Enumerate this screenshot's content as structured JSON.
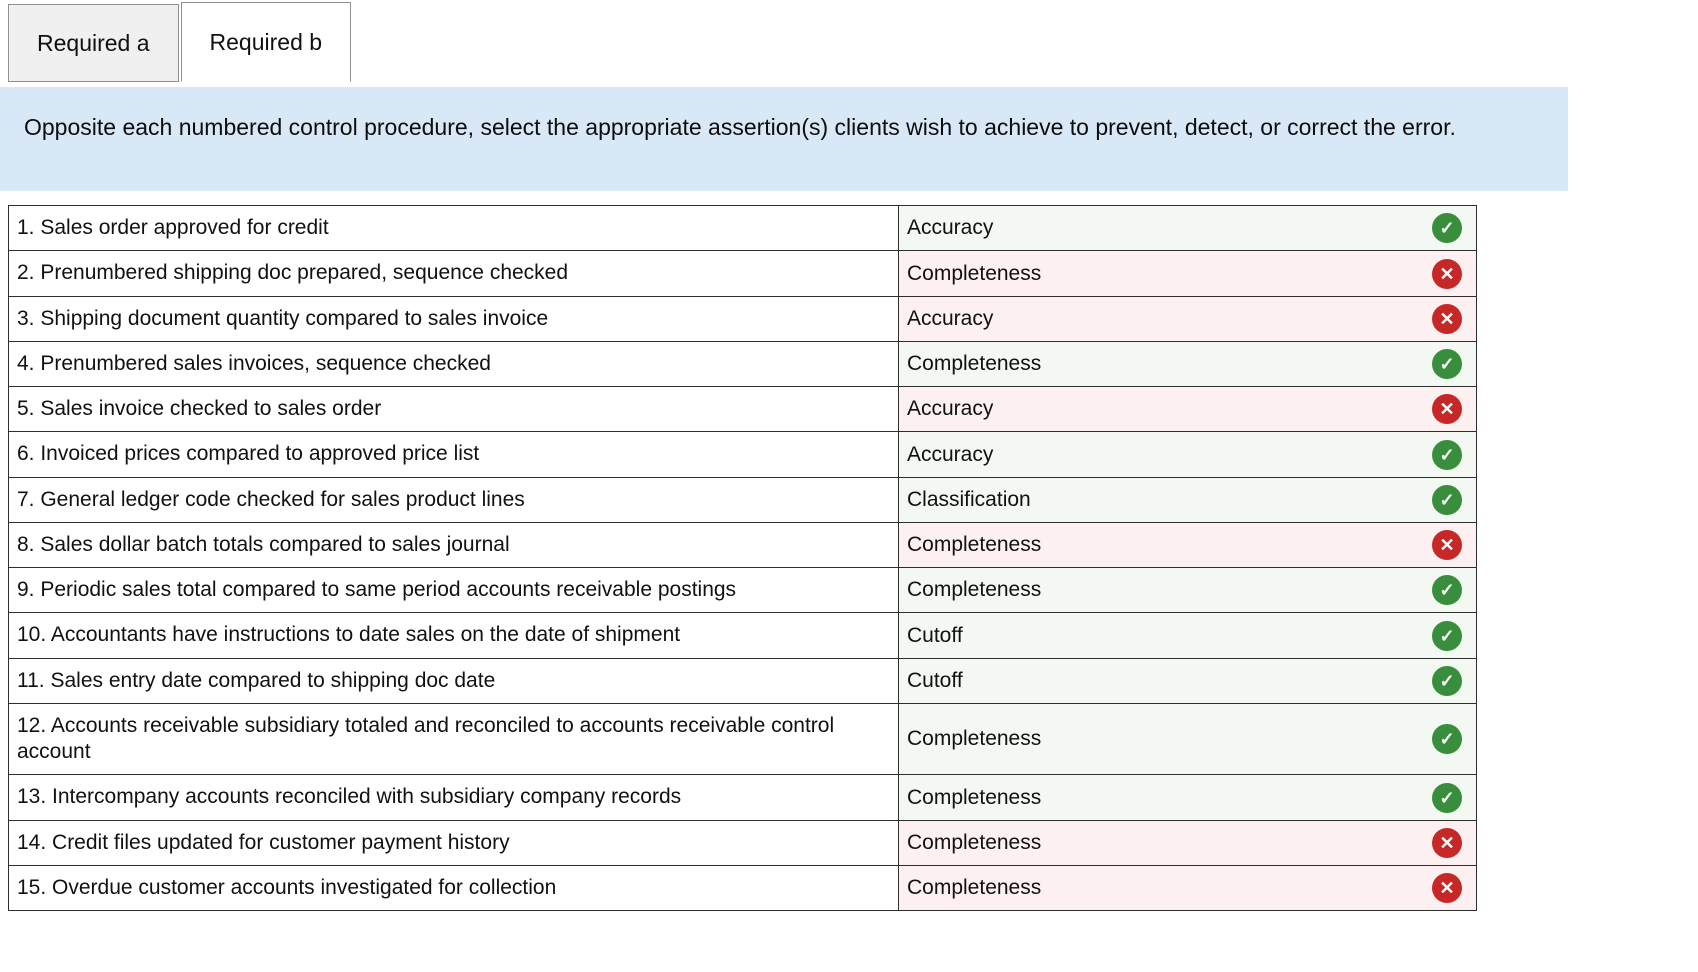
{
  "tabs": [
    {
      "label": "Required a",
      "active": false
    },
    {
      "label": "Required b",
      "active": true
    }
  ],
  "instruction": "Opposite each numbered control procedure, select the appropriate assertion(s) clients wish to achieve to prevent, detect, or correct the error.",
  "icons": {
    "correct": "✓",
    "incorrect": "✕"
  },
  "colors": {
    "banner_bg": "#d8e8f6",
    "correct_green": "#388e3c",
    "incorrect_red": "#c62828",
    "correct_cell_bg": "#f3f8f3",
    "incorrect_cell_bg": "#fdf0f0"
  },
  "table": {
    "rows": [
      {
        "procedure": "1. Sales order approved for credit",
        "assertion": "Accuracy",
        "correct": true
      },
      {
        "procedure": "2. Prenumbered shipping doc prepared, sequence checked",
        "assertion": "Completeness",
        "correct": false
      },
      {
        "procedure": "3. Shipping document quantity compared to sales invoice",
        "assertion": "Accuracy",
        "correct": false
      },
      {
        "procedure": "4. Prenumbered sales invoices, sequence checked",
        "assertion": "Completeness",
        "correct": true
      },
      {
        "procedure": "5. Sales invoice checked to sales order",
        "assertion": "Accuracy",
        "correct": false
      },
      {
        "procedure": "6. Invoiced prices compared to approved price list",
        "assertion": "Accuracy",
        "correct": true
      },
      {
        "procedure": "7. General ledger code checked for sales product lines",
        "assertion": "Classification",
        "correct": true
      },
      {
        "procedure": "8. Sales dollar batch totals compared to sales journal",
        "assertion": "Completeness",
        "correct": false
      },
      {
        "procedure": "9. Periodic sales total compared to same period accounts receivable postings",
        "assertion": "Completeness",
        "correct": true
      },
      {
        "procedure": "10. Accountants have instructions to date sales on the date of shipment",
        "assertion": "Cutoff",
        "correct": true
      },
      {
        "procedure": "11. Sales entry date compared to shipping doc date",
        "assertion": "Cutoff",
        "correct": true
      },
      {
        "procedure": "12. Accounts receivable subsidiary totaled and reconciled to accounts receivable control account",
        "assertion": "Completeness",
        "correct": true
      },
      {
        "procedure": "13. Intercompany accounts reconciled with subsidiary company records",
        "assertion": "Completeness",
        "correct": true
      },
      {
        "procedure": "14. Credit files updated for customer payment history",
        "assertion": "Completeness",
        "correct": false
      },
      {
        "procedure": "15. Overdue customer accounts investigated for collection",
        "assertion": "Completeness",
        "correct": false
      }
    ]
  }
}
